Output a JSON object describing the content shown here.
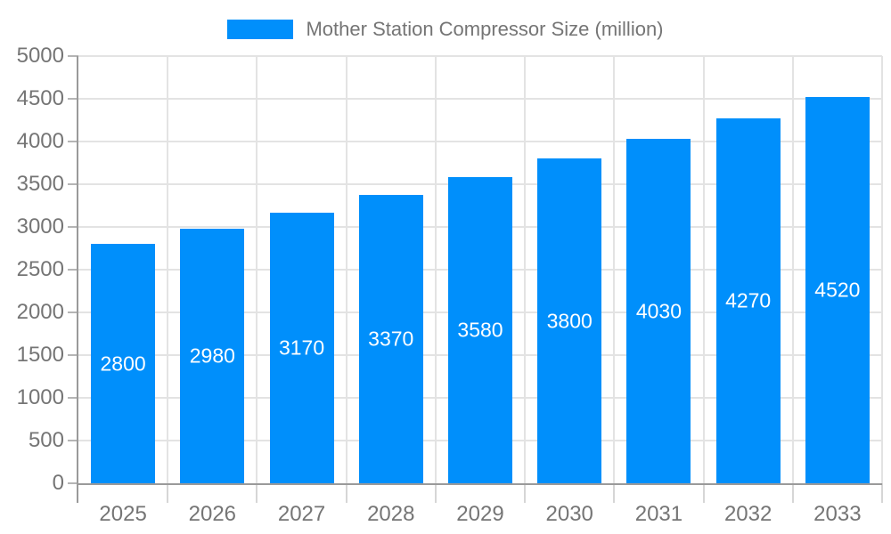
{
  "legend": {
    "label": "Mother Station Compressor Size (million)",
    "swatch_color": "#008FFB"
  },
  "chart_data": {
    "type": "bar",
    "title": "Mother Station Compressor Size (million)",
    "categories": [
      "2025",
      "2026",
      "2027",
      "2028",
      "2029",
      "2030",
      "2031",
      "2032",
      "2033"
    ],
    "values": [
      2800,
      2980,
      3170,
      3370,
      3580,
      3800,
      4030,
      4270,
      4520
    ],
    "series": [
      {
        "name": "Mother Station Compressor Size (million)",
        "values": [
          2800,
          2980,
          3170,
          3370,
          3580,
          3800,
          4030,
          4270,
          4520
        ]
      }
    ],
    "xlabel": "",
    "ylabel": "",
    "ylim": [
      0,
      5000
    ],
    "ytick_step": 500,
    "yticks": [
      0,
      500,
      1000,
      1500,
      2000,
      2500,
      3000,
      3500,
      4000,
      4500,
      5000
    ],
    "grid": true,
    "legend_position": "top",
    "value_label_position": "inside-center",
    "value_label_color": "#ffffff"
  },
  "colors": {
    "bar": "#008FFB",
    "grid": "#e3e3e3",
    "axis": "#9a9a9a",
    "text": "#757575",
    "background": "#ffffff"
  }
}
